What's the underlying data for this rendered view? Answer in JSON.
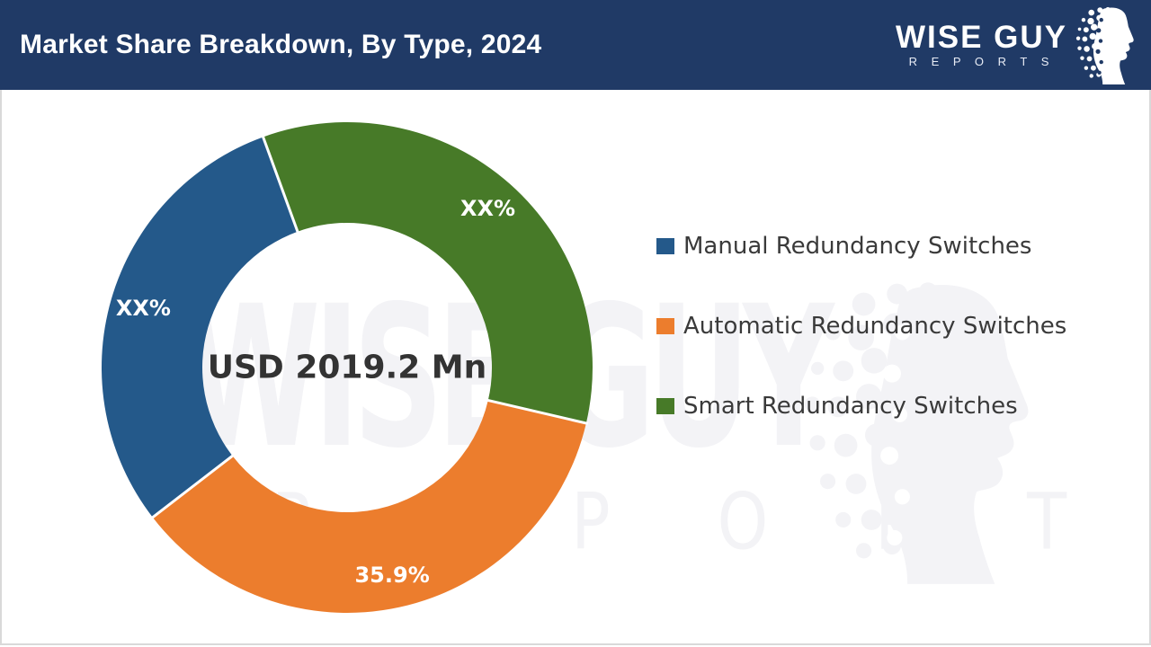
{
  "header": {
    "title": "Market Share Breakdown, By Type, 2024",
    "logo": {
      "line1": "WISE GUY",
      "line2": "R E P O R T S"
    }
  },
  "watermark": {
    "line1": "WISE GUY",
    "line2": "R E P O R T S"
  },
  "chart_data": {
    "type": "pie",
    "subtype": "donut",
    "title": "Market Share Breakdown, By Type, 2024",
    "center_label": "USD 2019.2 Mn",
    "start_angle_deg": 110,
    "direction": "counterclockwise",
    "inner_radius_ratio": 0.59,
    "legend_position": "right",
    "slice_label_color": "#ffffff",
    "series": [
      {
        "label": "Manual Redundancy Switches",
        "value_pct": 29.9,
        "displayed_value": "XX%",
        "color": "#24598a"
      },
      {
        "label": "Automatic Redundancy Switches",
        "value_pct": 35.9,
        "displayed_value": "35.9%",
        "color": "#ec7d2d"
      },
      {
        "label": "Smart Redundancy Switches",
        "value_pct": 34.2,
        "displayed_value": "XX%",
        "color": "#477a28"
      }
    ]
  },
  "colors": {
    "header_bg": "#203a66",
    "page_bg": "#ffffff",
    "center_text": "#333333",
    "legend_text": "#3a3a3a",
    "border": "#d9d9d9",
    "watermark": "#f3f3f6"
  }
}
